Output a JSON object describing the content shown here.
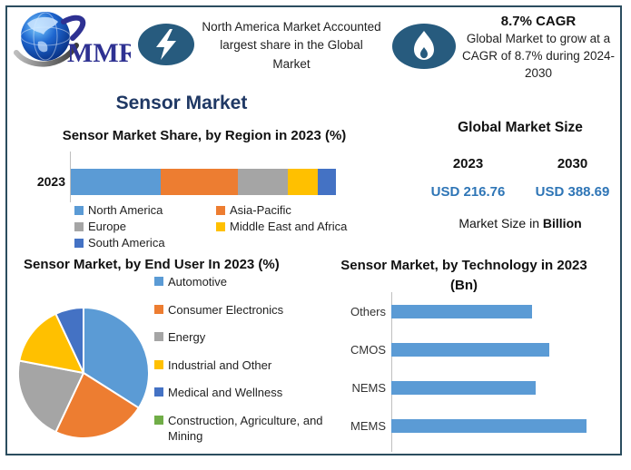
{
  "frame": {
    "border_color": "#2b4d5f"
  },
  "header": {
    "logo": {
      "text": "MMR"
    },
    "highlight": {
      "icon": "lightning-bolt-icon",
      "text": "North America Market Accounted largest share in the Global Market"
    },
    "cagr": {
      "icon": "flame-icon",
      "title": "8.7% CAGR",
      "description": "Global Market to grow at a CAGR of 8.7% during 2024-2030"
    }
  },
  "page_title": "Sensor Market",
  "market_size": {
    "heading": "Global Market Size",
    "columns": [
      {
        "year": "2023",
        "value": "USD 216.76"
      },
      {
        "year": "2030",
        "value": "USD 388.69"
      }
    ],
    "note_prefix": "Market Size in ",
    "note_bold": "Billion",
    "value_color": "#2E75B6"
  },
  "chart_data": [
    {
      "type": "bar",
      "variant": "stacked-horizontal",
      "title": "Sensor Market Share, by Region in 2023 (%)",
      "categories": [
        "2023"
      ],
      "series": [
        {
          "name": "North America",
          "values": [
            34
          ],
          "color": "#5B9BD5"
        },
        {
          "name": "Asia-Pacific",
          "values": [
            29
          ],
          "color": "#ED7D31"
        },
        {
          "name": "Europe",
          "values": [
            19
          ],
          "color": "#A5A5A5"
        },
        {
          "name": "Middle East and Africa",
          "values": [
            11
          ],
          "color": "#FFC000"
        },
        {
          "name": "South America",
          "values": [
            7
          ],
          "color": "#4472C4"
        }
      ],
      "unit": "%",
      "xlim": [
        0,
        100
      ],
      "grid": false,
      "legend_position": "bottom"
    },
    {
      "type": "pie",
      "title": "Sensor Market, by End User In 2023 (%)",
      "labels": [
        "Automotive",
        "Consumer Electronics",
        "Energy",
        "Industrial and Other",
        "Medical and Wellness",
        "Construction, Agriculture, and Mining"
      ],
      "values": [
        34,
        23,
        21,
        15,
        7,
        0
      ],
      "colors": [
        "#5B9BD5",
        "#ED7D31",
        "#A5A5A5",
        "#FFC000",
        "#4472C4",
        "#70AD47"
      ],
      "unit": "%",
      "start_angle_deg": 0,
      "direction": "clockwise",
      "legend_position": "right"
    },
    {
      "type": "bar",
      "variant": "horizontal",
      "title": "Sensor Market, by Technology in 2023 (Bn)",
      "categories": [
        "Others",
        "CMOS",
        "NEMS",
        "MEMS"
      ],
      "values": [
        72,
        81,
        74,
        100
      ],
      "unit": "relative length, MEMS = 100 (axis unlabeled)",
      "bar_color": "#5B9BD5",
      "grid": false
    }
  ]
}
